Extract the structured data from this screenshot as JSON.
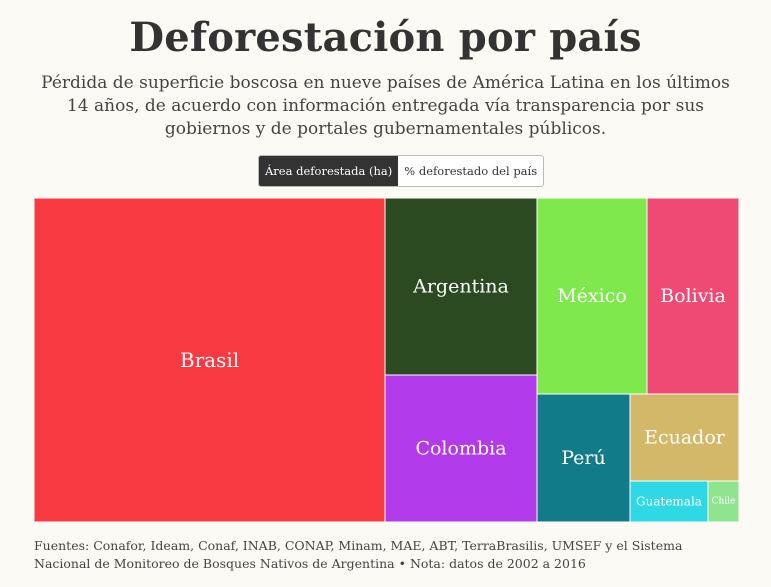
{
  "header": {
    "title": "Deforestación por país",
    "subtitle": "Pérdida de superficie boscosa en nueve países de América Latina en los últimos 14 años, de acuerdo con información entregada vía transparencia por sus gobiernos y de portales gubernamentales públicos."
  },
  "toggle": {
    "option_area": "Área deforestada (ha)",
    "option_percent": "% deforestado del país",
    "selected": "Área deforestada (ha)"
  },
  "chart_data": {
    "type": "treemap",
    "metric": "Área deforestada (ha)",
    "series": [
      {
        "name": "Brasil",
        "color": "#f93a42"
      },
      {
        "name": "Argentina",
        "color": "#2b4a22"
      },
      {
        "name": "Colombia",
        "color": "#b13aea"
      },
      {
        "name": "México",
        "color": "#7ee84c"
      },
      {
        "name": "Bolivia",
        "color": "#ee4a73"
      },
      {
        "name": "Perú",
        "color": "#117b89"
      },
      {
        "name": "Ecuador",
        "color": "#d3b86a"
      },
      {
        "name": "Guatemala",
        "color": "#2ed8e4"
      },
      {
        "name": "Chile",
        "color": "#8fe58f"
      }
    ]
  },
  "footer": {
    "sources": "Fuentes: Conafor, Ideam, Conaf, INAB, CONAP, Minam, MAE, ABT, TerraBrasilis, UMSEF y el Sistema Nacional de Monitoreo de Bosques Nativos de Argentina • Nota: datos de 2002 a 2016"
  }
}
